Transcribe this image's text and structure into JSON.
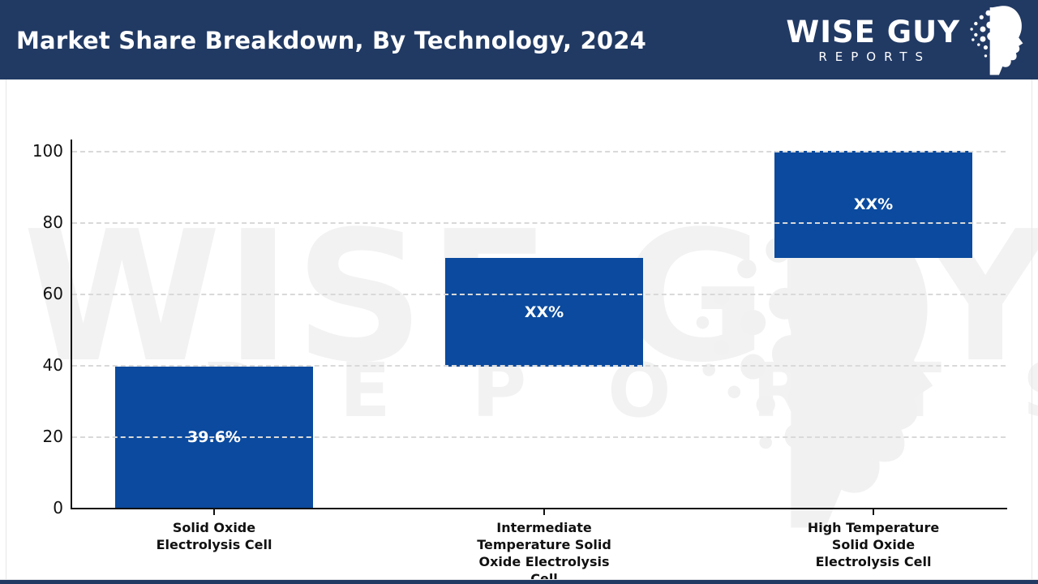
{
  "header": {
    "title": "Market Share Breakdown, By Technology, 2024",
    "bg_color": "#213a64",
    "logo": {
      "line1": "WISE GUY",
      "line2": "REPORTS"
    }
  },
  "watermark": {
    "line1": "WISE GUY",
    "line2": "R E P O R T S"
  },
  "chart_data": {
    "type": "bar",
    "subtype": "waterfall",
    "title": "Market Share Breakdown, By Technology, 2024",
    "categories": [
      [
        "Solid Oxide",
        "Electrolysis Cell"
      ],
      [
        "Intermediate",
        "Temperature Solid",
        "Oxide Electrolysis",
        "Cell"
      ],
      [
        "High Temperature",
        "Solid Oxide",
        "Electrolysis Cell"
      ]
    ],
    "segments": [
      {
        "start": 0,
        "end": 39.6,
        "label": "39.6%"
      },
      {
        "start": 39.6,
        "end": 70,
        "label": "XX%"
      },
      {
        "start": 70,
        "end": 100,
        "label": "XX%"
      }
    ],
    "yticks": [
      0,
      20,
      40,
      60,
      80,
      100
    ],
    "ylim": [
      0,
      100
    ],
    "xlabel": "",
    "ylabel": "",
    "grid": "horizontal-dashed",
    "legend": "none",
    "bar_color": "#0b4a9e",
    "grid_color": "#d9d9d9",
    "axis_color": "#111111",
    "value_label_color": "#ffffff"
  }
}
